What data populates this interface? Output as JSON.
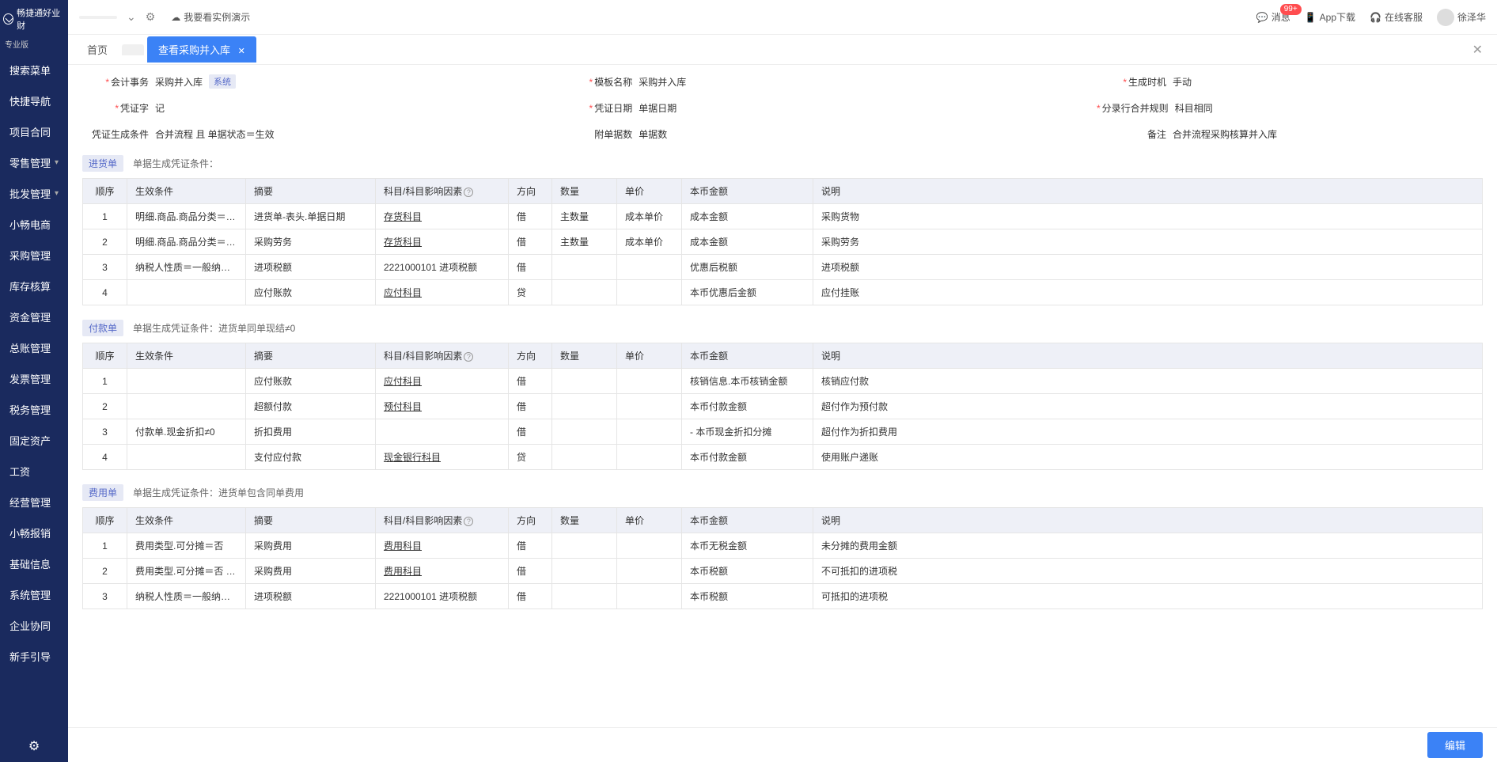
{
  "brand": {
    "name": "畅捷通好业财",
    "edition": "专业版"
  },
  "sidebar": {
    "items": [
      {
        "label": "搜索菜单",
        "expandable": false
      },
      {
        "label": "快捷导航",
        "expandable": false
      },
      {
        "label": "项目合同",
        "expandable": false
      },
      {
        "label": "零售管理",
        "expandable": true
      },
      {
        "label": "批发管理",
        "expandable": true
      },
      {
        "label": "小畅电商",
        "expandable": false
      },
      {
        "label": "采购管理",
        "expandable": false
      },
      {
        "label": "库存核算",
        "expandable": false
      },
      {
        "label": "资金管理",
        "expandable": false
      },
      {
        "label": "总账管理",
        "expandable": false
      },
      {
        "label": "发票管理",
        "expandable": false
      },
      {
        "label": "税务管理",
        "expandable": false
      },
      {
        "label": "固定资产",
        "expandable": false
      },
      {
        "label": "工资",
        "expandable": false
      },
      {
        "label": "经营管理",
        "expandable": false
      },
      {
        "label": "小畅报销",
        "expandable": false
      },
      {
        "label": "基础信息",
        "expandable": false
      },
      {
        "label": "系统管理",
        "expandable": false
      },
      {
        "label": "企业协同",
        "expandable": false
      },
      {
        "label": "新手引导",
        "expandable": false
      }
    ],
    "settings_icon": "⚙"
  },
  "topbar": {
    "org": " ",
    "demo_label": "我要看实例演示",
    "right": {
      "msg": "消息",
      "msg_badge": "99+",
      "download": "App下载",
      "service": "在线客服",
      "user": "徐泽华"
    }
  },
  "tabs": {
    "home": "首页",
    "blur": " ",
    "active": "查看采购并入库"
  },
  "form": {
    "r1": {
      "biz_label": "会计事务",
      "biz_value": "采购并入库",
      "biz_tag": "系统",
      "tpl_label": "模板名称",
      "tpl_value": "采购并入库",
      "gen_label": "生成时机",
      "gen_value": "手动"
    },
    "r2": {
      "vch_label": "凭证字",
      "vch_value": "记",
      "vdate_label": "凭证日期",
      "vdate_value": "单据日期",
      "rule_label": "分录行合并规则",
      "rule_value": "科目相同"
    },
    "r3": {
      "cond_label": "凭证生成条件",
      "cond_value": "合并流程 且 单据状态＝生效",
      "att_label": "附单据数",
      "att_value": "单据数",
      "remark_label": "备注",
      "remark_value": "合并流程采购核算并入库"
    }
  },
  "columns": {
    "seq": "顺序",
    "cond": "生效条件",
    "summary": "摘要",
    "subject": "科目/科目影响因素",
    "info": "?",
    "dir": "方向",
    "qty": "数量",
    "price": "单价",
    "amt": "本币金额",
    "desc": "说明"
  },
  "sections": [
    {
      "tag": "进货单",
      "cond_label": "单据生成凭证条件：",
      "cond": "",
      "rows": [
        {
          "seq": "1",
          "cond": "明细.商品.商品分类＝货物",
          "summary": "进货单-表头.单据日期",
          "subject": "存货科目",
          "subject_u": true,
          "dir": "借",
          "qty": "主数量",
          "price": "成本单价",
          "amt": "成本金额",
          "desc": "采购货物"
        },
        {
          "seq": "2",
          "cond": "明细.商品.商品分类＝劳务",
          "summary": "采购劳务",
          "subject": "存货科目",
          "subject_u": true,
          "dir": "借",
          "qty": "主数量",
          "price": "成本单价",
          "amt": "成本金额",
          "desc": "采购劳务"
        },
        {
          "seq": "3",
          "cond": "纳税人性质＝一般纳税人 且 发",
          "summary": "进项税额",
          "subject": "2221000101 进项税额",
          "subject_u": false,
          "dir": "借",
          "qty": "",
          "price": "",
          "amt": "优惠后税额",
          "desc": "进项税额"
        },
        {
          "seq": "4",
          "cond": "",
          "summary": "应付账款",
          "subject": "应付科目",
          "subject_u": true,
          "dir": "贷",
          "qty": "",
          "price": "",
          "amt": "本币优惠后金额",
          "desc": "应付挂账"
        }
      ]
    },
    {
      "tag": "付款单",
      "cond_label": "单据生成凭证条件：",
      "cond": "进货单同单现结≠0",
      "rows": [
        {
          "seq": "1",
          "cond": "",
          "summary": "应付账款",
          "subject": "应付科目",
          "subject_u": true,
          "dir": "借",
          "qty": "",
          "price": "",
          "amt": "核销信息.本币核销金额",
          "desc": "核销应付款"
        },
        {
          "seq": "2",
          "cond": "",
          "summary": "超额付款",
          "subject": "预付科目",
          "subject_u": true,
          "dir": "借",
          "qty": "",
          "price": "",
          "amt": "本币付款金额",
          "desc": "超付作为预付款"
        },
        {
          "seq": "3",
          "cond": "付款单.现金折扣≠0",
          "summary": "折扣费用",
          "subject": "",
          "subject_u": false,
          "dir": "借",
          "qty": "",
          "price": "",
          "amt": "- 本币现金折扣分摊",
          "desc": "超付作为折扣费用"
        },
        {
          "seq": "4",
          "cond": "",
          "summary": "支付应付款",
          "subject": "现金银行科目",
          "subject_u": true,
          "dir": "贷",
          "qty": "",
          "price": "",
          "amt": "本币付款金额",
          "desc": "使用账户递账"
        }
      ]
    },
    {
      "tag": "费用单",
      "cond_label": "单据生成凭证条件：",
      "cond": "进货单包含同单费用",
      "rows": [
        {
          "seq": "1",
          "cond": "费用类型.可分摊＝否",
          "summary": "采购费用",
          "subject": "费用科目",
          "subject_u": true,
          "dir": "借",
          "qty": "",
          "price": "",
          "amt": "本币无税金额",
          "desc": "未分摊的费用金额"
        },
        {
          "seq": "2",
          "cond": "费用类型.可分摊＝否 且 (纳税",
          "summary": "采购费用",
          "subject": "费用科目",
          "subject_u": true,
          "dir": "借",
          "qty": "",
          "price": "",
          "amt": "本币税额",
          "desc": "不可抵扣的进项税"
        },
        {
          "seq": "3",
          "cond": "纳税人性质＝一般纳税人 且 (",
          "summary": "进项税额",
          "subject": "2221000101 进项税额",
          "subject_u": false,
          "dir": "借",
          "qty": "",
          "price": "",
          "amt": "本币税额",
          "desc": "可抵扣的进项税"
        }
      ]
    }
  ],
  "footer": {
    "edit": "编辑"
  },
  "colors": {
    "sidebar_bg": "#1a2a5e",
    "primary": "#3b82f6",
    "tag_bg": "#e6e9f5",
    "tag_fg": "#5468c8",
    "th_bg": "#eef0f7",
    "border": "#e5e5e5",
    "required": "#ff4d4f",
    "badge": "#ff4d4f"
  }
}
